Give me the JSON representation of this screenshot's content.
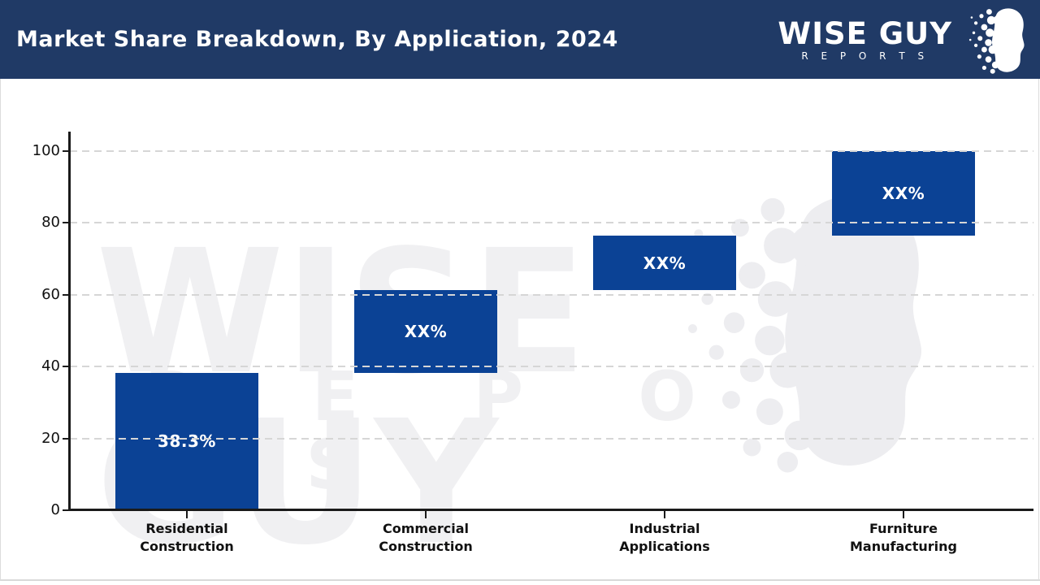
{
  "header": {
    "title": "Market Share Breakdown, By Application, 2024",
    "logo": {
      "line1": "WISE GUY",
      "line2": "R E P O R T S"
    }
  },
  "watermark": {
    "line1": "WISE GUY",
    "line2": "R E P O R T S"
  },
  "chart_data": {
    "type": "bar",
    "subtype": "waterfall",
    "title": "Market Share Breakdown, By Application, 2024",
    "categories": [
      "Residential Construction",
      "Commercial Construction",
      "Industrial Applications",
      "Furniture Manufacturing"
    ],
    "category_lines": [
      [
        "Residential",
        "Construction"
      ],
      [
        "Commercial",
        "Construction"
      ],
      [
        "Industrial",
        "Applications"
      ],
      [
        "Furniture",
        "Manufacturing"
      ]
    ],
    "bars": [
      {
        "category": "Residential Construction",
        "start": 0,
        "end": 38.3,
        "label": "38.3%"
      },
      {
        "category": "Commercial Construction",
        "start": 38.3,
        "end": 61.3,
        "label": "XX%"
      },
      {
        "category": "Industrial Applications",
        "start": 61.3,
        "end": 76.4,
        "label": "XX%"
      },
      {
        "category": "Furniture Manufacturing",
        "start": 76.4,
        "end": 100,
        "label": "XX%"
      }
    ],
    "ylim": [
      0,
      100
    ],
    "yticks": [
      0,
      20,
      40,
      60,
      80,
      100
    ],
    "grid": "horizontal-dashed",
    "legend": "none",
    "bar_color": "#0b4295"
  },
  "colors": {
    "header_bg": "#203a66",
    "bar": "#0b4295",
    "bar_label": "#ffffff",
    "axis": "#1a1a1a",
    "gridline": "#d6d6d6",
    "watermark": "#f0f0f2",
    "background": "#ffffff"
  }
}
